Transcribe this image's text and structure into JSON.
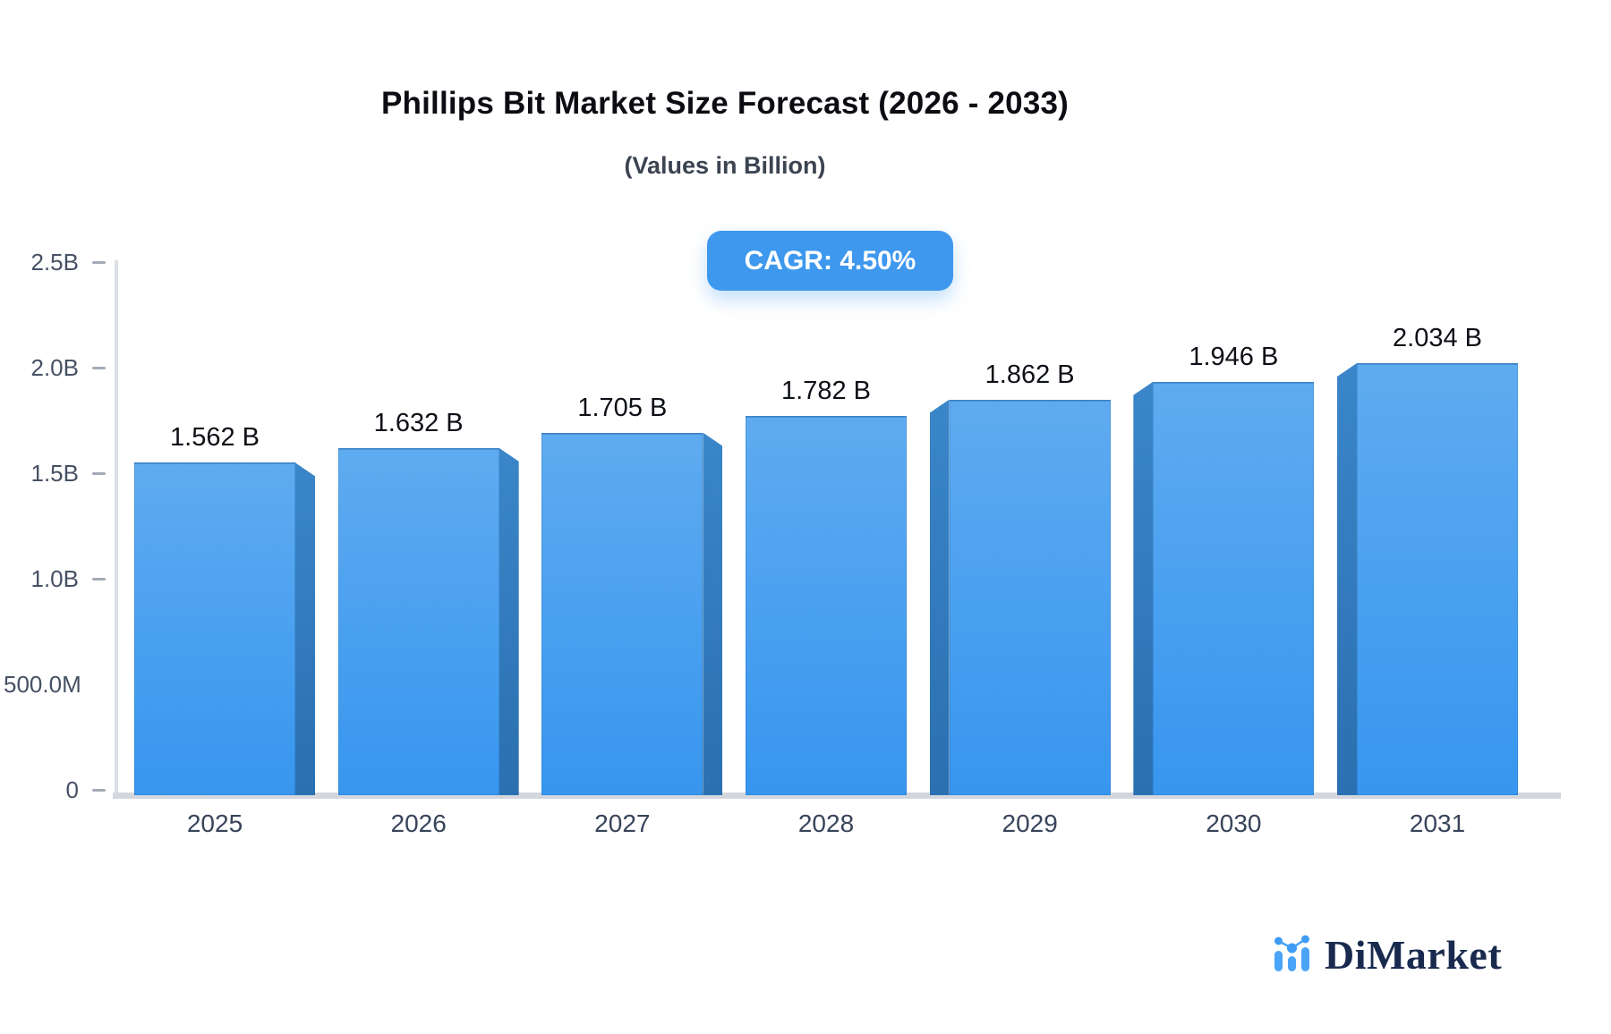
{
  "header": {
    "title": "Phillips Bit Market Size Forecast (2026 - 2033)",
    "subtitle": "(Values in Billion)",
    "cagr_badge": "CAGR: 4.50%"
  },
  "chart_data": {
    "type": "bar",
    "title": "Phillips Bit Market Size Forecast (2026 - 2033)",
    "subtitle": "(Values in Billion)",
    "categories": [
      "2025",
      "2026",
      "2027",
      "2028",
      "2029",
      "2030",
      "2031"
    ],
    "values": [
      1.562,
      1.632,
      1.705,
      1.782,
      1.862,
      1.946,
      2.034
    ],
    "value_labels": [
      "1.562 B",
      "1.632 B",
      "1.705 B",
      "1.782 B",
      "1.862 B",
      "1.946 B",
      "2.034 B"
    ],
    "unit": "Billion",
    "xlabel": "",
    "ylabel": "",
    "ylim": [
      0,
      2.5
    ],
    "yticks": [
      {
        "label": "2.5B",
        "value": 2.5,
        "dash": true
      },
      {
        "label": "2.0B",
        "value": 2.0,
        "dash": true
      },
      {
        "label": "1.5B",
        "value": 1.5,
        "dash": true
      },
      {
        "label": "1.0B",
        "value": 1.0,
        "dash": true
      },
      {
        "label": "500.0M",
        "value": 0.5,
        "dash": false
      },
      {
        "label": "0",
        "value": 0,
        "dash": true
      }
    ],
    "grid": false,
    "legend": false,
    "bar_style": "3d-perspective-toward-center"
  },
  "footer": {
    "brand": "DiMarket",
    "brand_icon": "mini-bar-line-chart-icon"
  },
  "colors": {
    "bar_face_top": "#5FABF0",
    "bar_face_bottom": "#3796EF",
    "bar_side_top": "#3A86C9",
    "bar_side_bottom": "#2B70B0",
    "badge_bg": "#3D98EE",
    "badge_text": "#FFFFFF",
    "axis_line": "#D5D9DE",
    "tick_dash": "#A3ABB6",
    "tick_label": "#475164",
    "category_label": "#38445A",
    "value_label": "#0D1016",
    "title": "#0B0D12",
    "subtitle": "#3C4452",
    "brand_text": "#192A4E",
    "brand_blue": "#4AA4F8"
  }
}
